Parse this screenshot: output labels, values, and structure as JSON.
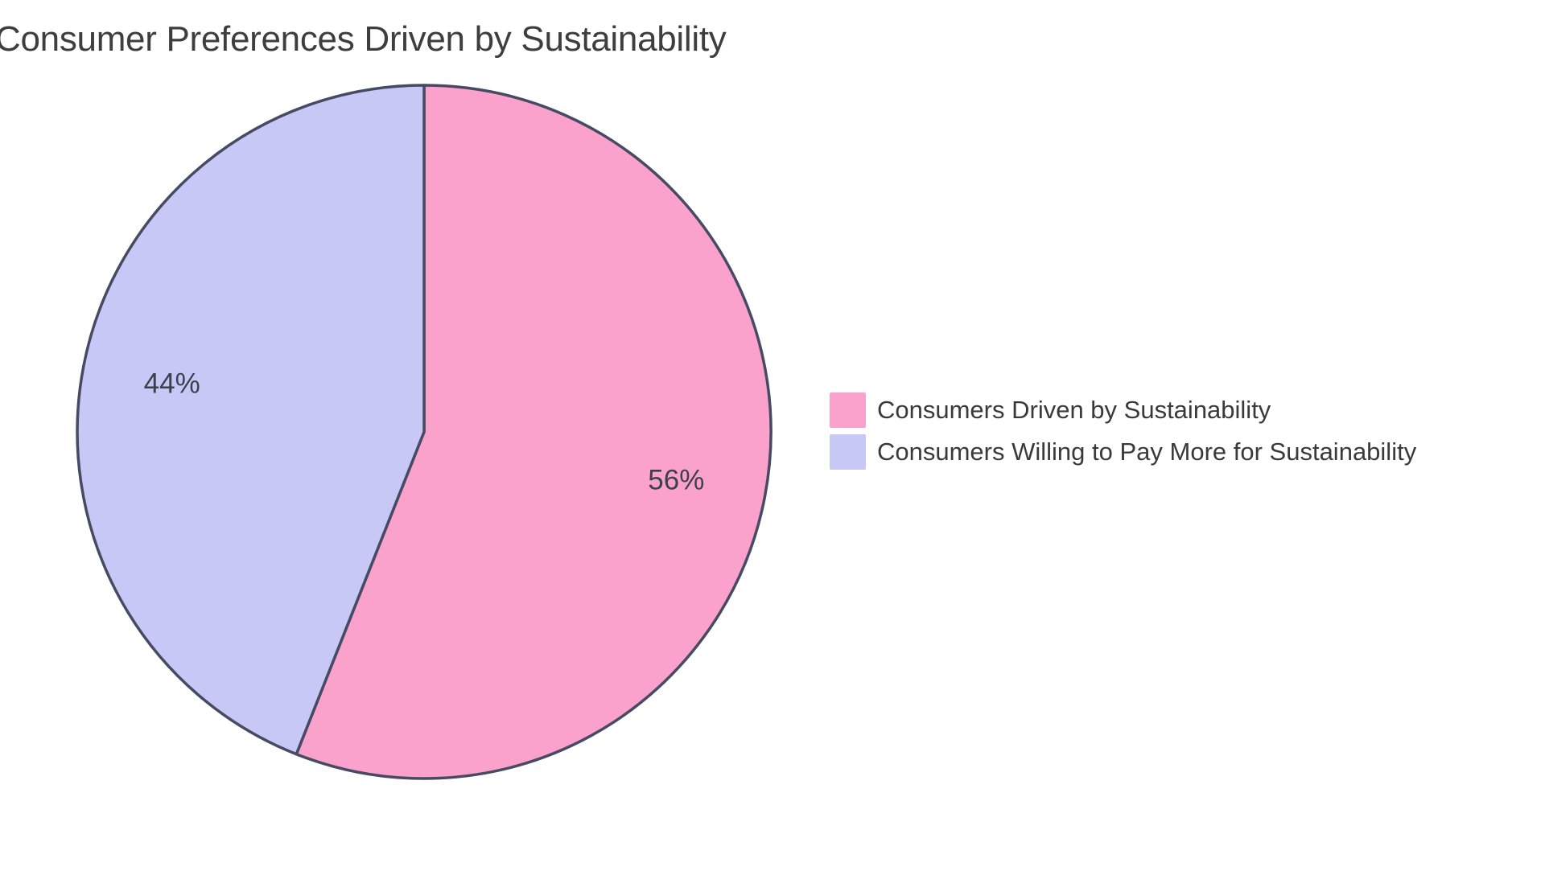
{
  "chart_data": {
    "type": "pie",
    "title": "Consumer Preferences Driven by Sustainability",
    "slices": [
      {
        "label": "Consumers Driven by Sustainability",
        "value": 56,
        "display": "56%",
        "color": "#FAA1CC"
      },
      {
        "label": "Consumers Willing to Pay More for Sustainability",
        "value": 44,
        "display": "44%",
        "color": "#C8C8F7"
      }
    ],
    "start_angle_deg": 0,
    "direction": "clockwise",
    "stroke_color": "#464A63",
    "label_color": "#3C3F4C",
    "title_color": "#3E3E3E",
    "legend_text_color": "#3A3A3A",
    "legend_position": "right",
    "background": "#FFFFFF"
  }
}
